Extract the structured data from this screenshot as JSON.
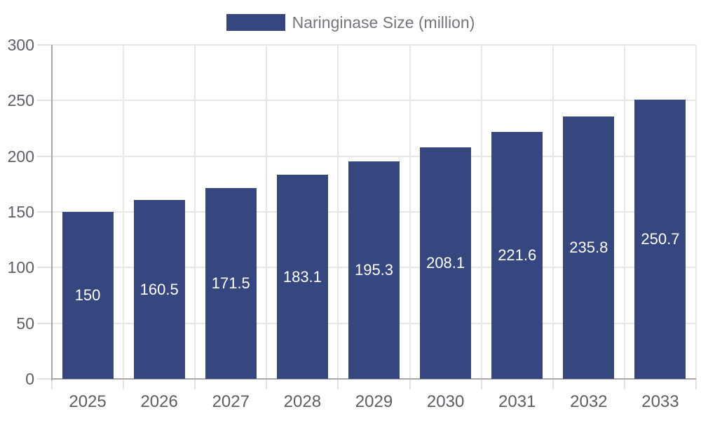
{
  "legend": {
    "label": "Naringinase Size (million)"
  },
  "chart_data": {
    "type": "bar",
    "title": "",
    "xlabel": "",
    "ylabel": "",
    "series_name": "Naringinase Size (million)",
    "categories": [
      "2025",
      "2026",
      "2027",
      "2028",
      "2029",
      "2030",
      "2031",
      "2032",
      "2033"
    ],
    "values": [
      150,
      160.5,
      171.5,
      183.1,
      195.3,
      208.1,
      221.6,
      235.8,
      250.7
    ],
    "ylim": [
      0,
      300
    ],
    "yticks": [
      0,
      50,
      100,
      150,
      200,
      250,
      300
    ],
    "grid": true,
    "legend_position": "top",
    "value_labels_position": "inside-center",
    "colors": {
      "bar": "#35477e",
      "value_label": "#ffffff",
      "axis_label": "#5d5e66",
      "legend_label": "#74757d",
      "axis_line": "#a9a9ad",
      "grid_line": "#e7e7ea",
      "background": "#ffffff"
    }
  }
}
